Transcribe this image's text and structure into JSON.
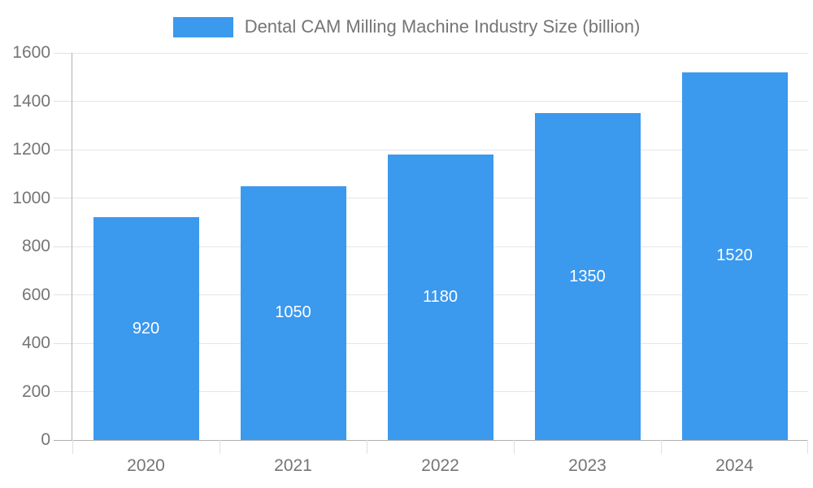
{
  "chart_data": {
    "type": "bar",
    "title": "Dental CAM Milling Machine Industry Size (billion)",
    "categories": [
      "2020",
      "2021",
      "2022",
      "2023",
      "2024"
    ],
    "values": [
      920,
      1050,
      1180,
      1350,
      1520
    ],
    "xlabel": "",
    "ylabel": "",
    "ylim": [
      0,
      1600
    ],
    "ytick_step": 200,
    "yticks": [
      0,
      200,
      400,
      600,
      800,
      1000,
      1200,
      1400,
      1600
    ],
    "grid": true,
    "legend_position": "top",
    "colors": {
      "bar": "#3b99ee",
      "bar_value_text": "#ffffff",
      "axis_text": "#757575",
      "gridline": "#e6e6e6",
      "axis_line": "#b0b0b0",
      "tick_mark": "#e0e0e0"
    }
  },
  "legend": {
    "label": "Dental CAM Milling Machine Industry Size (billion)"
  }
}
